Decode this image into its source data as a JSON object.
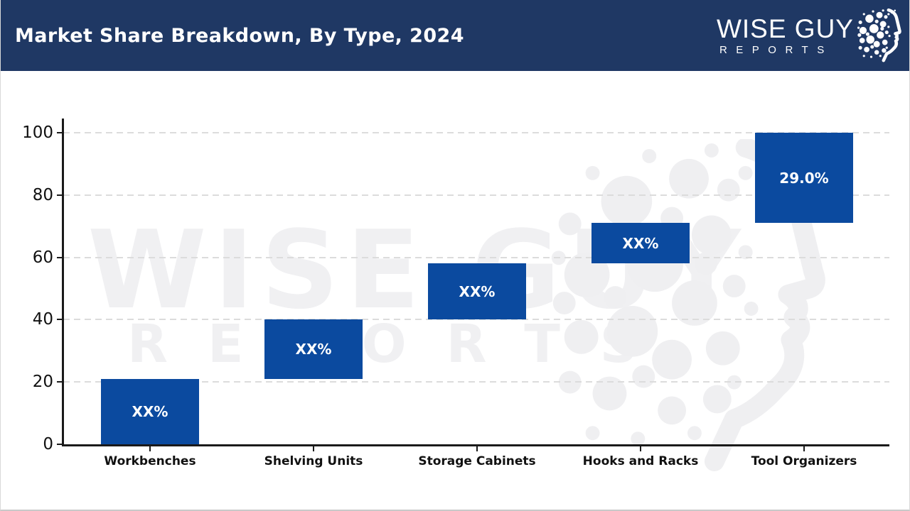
{
  "header": {
    "title": "Market Share Breakdown, By Type, 2024",
    "bg_color": "#1f3864",
    "logo": {
      "line1": "WISE GUY",
      "line2": "REPORTS"
    }
  },
  "watermark": {
    "line1": "WISE GUY",
    "line2": "REPORTS"
  },
  "chart_data": {
    "type": "bar",
    "subtype": "waterfall",
    "title": "Market Share Breakdown, By Type, 2024",
    "categories": [
      "Workbenches",
      "Shelving Units",
      "Storage Cabinets",
      "Hooks and Racks",
      "Tool Organizers"
    ],
    "series": [
      {
        "name": "Market Share (%)",
        "segments": [
          [
            0,
            21
          ],
          [
            21,
            40
          ],
          [
            40,
            58
          ],
          [
            58,
            71
          ],
          [
            71,
            100
          ]
        ],
        "values": [
          21,
          19,
          18,
          13,
          29
        ],
        "labels": [
          "XX%",
          "XX%",
          "XX%",
          "XX%",
          "29.0%"
        ]
      }
    ],
    "bar_color": "#0b4a9f",
    "label_color": "#ffffff",
    "xlabel": "",
    "ylabel": "",
    "yticks": [
      0,
      20,
      40,
      60,
      80,
      100
    ],
    "ylim": [
      0,
      105
    ],
    "grid": "horizontal-dashed",
    "gridline_color": "#dcdcdc",
    "legend": "none"
  }
}
